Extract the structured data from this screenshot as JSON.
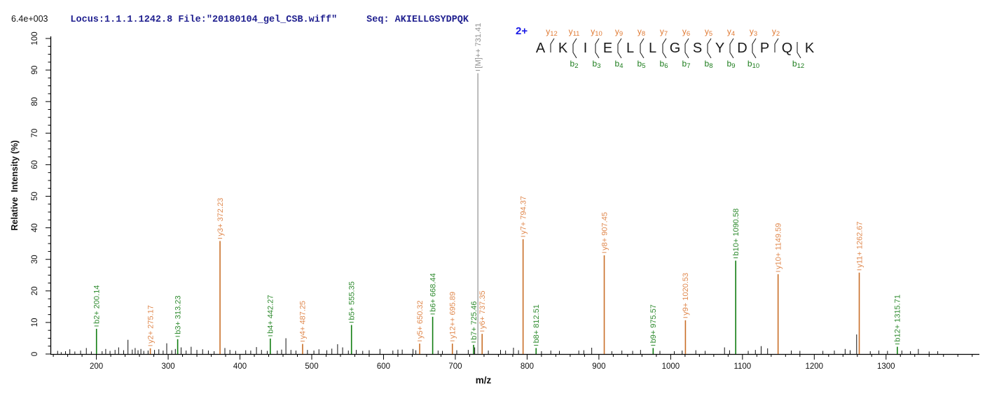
{
  "header": {
    "locus_file": "Locus:1.1.1.1242.8 File:\"20180104_gel_CSB.wiff\"",
    "seq": "Seq: AKIELLGSYDPQK"
  },
  "chart_data": {
    "type": "bar",
    "title": "MS/MS fragment ion spectrum",
    "xlabel": "m/z",
    "ylabel": "Relative  Intensity (%)",
    "scale_note": "6.4e+003",
    "xlim": [
      136,
      1430
    ],
    "ylim": [
      0,
      100
    ],
    "x_major_ticks": [
      200,
      300,
      400,
      500,
      600,
      700,
      800,
      900,
      1000,
      1100,
      1200,
      1300
    ],
    "x_minor_step": 20,
    "y_major_step": 10,
    "y_minor_step": 2.5,
    "grid": "off",
    "precursor": {
      "label": "[M]++ 731.41",
      "mz": 731.41,
      "pct": 89
    },
    "labeled_peaks": [
      {
        "label": "b2+ 200.14",
        "mz": 200.14,
        "pct": 8.0,
        "series": "b"
      },
      {
        "label": "y2+ 275.17",
        "mz": 275.17,
        "pct": 1.8,
        "series": "y"
      },
      {
        "label": "b3+ 313.23",
        "mz": 313.23,
        "pct": 4.7,
        "series": "b"
      },
      {
        "label": "y3+ 372.23",
        "mz": 372.23,
        "pct": 35.8,
        "series": "y"
      },
      {
        "label": "b4+ 442.27",
        "mz": 442.27,
        "pct": 4.9,
        "series": "b"
      },
      {
        "label": "y4+ 487.25",
        "mz": 487.25,
        "pct": 3.2,
        "series": "y"
      },
      {
        "label": "b5+ 555.35",
        "mz": 555.35,
        "pct": 9.2,
        "series": "b"
      },
      {
        "label": "y5+ 650.32",
        "mz": 650.32,
        "pct": 3.3,
        "series": "y"
      },
      {
        "label": "b6+ 668.44",
        "mz": 668.44,
        "pct": 11.8,
        "series": "b"
      },
      {
        "label": "y12++ 695.89",
        "mz": 695.89,
        "pct": 3.3,
        "series": "y"
      },
      {
        "label": "b7+ 725.46",
        "mz": 725.46,
        "pct": 2.9,
        "series": "b"
      },
      {
        "label": "y6+ 737.35",
        "mz": 737.35,
        "pct": 6.4,
        "series": "y"
      },
      {
        "label": "y7+ 794.37",
        "mz": 794.37,
        "pct": 36.4,
        "series": "y"
      },
      {
        "label": "b8+ 812.51",
        "mz": 812.51,
        "pct": 1.9,
        "series": "b"
      },
      {
        "label": "y8+ 907.45",
        "mz": 907.45,
        "pct": 31.3,
        "series": "y"
      },
      {
        "label": "b9+ 975.57",
        "mz": 975.57,
        "pct": 1.9,
        "series": "b"
      },
      {
        "label": "y9+ 1020.53",
        "mz": 1020.53,
        "pct": 10.7,
        "series": "y"
      },
      {
        "label": "b10+ 1090.58",
        "mz": 1090.58,
        "pct": 29.6,
        "series": "b"
      },
      {
        "label": "y10+ 1149.59",
        "mz": 1149.59,
        "pct": 25.3,
        "series": "y"
      },
      {
        "label": "y11+ 1262.67",
        "mz": 1262.67,
        "pct": 25.8,
        "series": "y"
      },
      {
        "label": "b12+ 1315.71",
        "mz": 1315.71,
        "pct": 2.3,
        "series": "b"
      }
    ],
    "noise_peaks": [
      [
        146,
        1.0
      ],
      [
        151,
        0.6
      ],
      [
        157,
        0.9
      ],
      [
        163,
        1.5
      ],
      [
        170,
        0.8
      ],
      [
        178,
        1.1
      ],
      [
        186,
        1.9
      ],
      [
        193,
        0.8
      ],
      [
        208,
        0.9
      ],
      [
        213,
        1.6
      ],
      [
        219,
        1.0
      ],
      [
        226,
        1.3
      ],
      [
        231,
        2.1
      ],
      [
        238,
        1.2
      ],
      [
        244,
        4.5
      ],
      [
        250,
        1.4
      ],
      [
        254,
        1.9
      ],
      [
        258,
        1.2
      ],
      [
        262,
        1.6
      ],
      [
        266,
        1.0
      ],
      [
        272,
        1.1
      ],
      [
        281,
        1.3
      ],
      [
        287,
        1.5
      ],
      [
        293,
        1.1
      ],
      [
        298,
        3.4
      ],
      [
        305,
        1.2
      ],
      [
        310,
        1.6
      ],
      [
        318,
        2.1
      ],
      [
        325,
        1.1
      ],
      [
        332,
        2.3
      ],
      [
        340,
        1.3
      ],
      [
        348,
        1.5
      ],
      [
        356,
        1.1
      ],
      [
        364,
        0.9
      ],
      [
        379,
        1.9
      ],
      [
        386,
        1.3
      ],
      [
        394,
        1.0
      ],
      [
        408,
        1.2
      ],
      [
        415,
        1.1
      ],
      [
        423,
        2.2
      ],
      [
        430,
        1.3
      ],
      [
        438,
        1.0
      ],
      [
        452,
        1.1
      ],
      [
        458,
        1.4
      ],
      [
        464,
        5.0
      ],
      [
        471,
        1.3
      ],
      [
        478,
        1.1
      ],
      [
        494,
        1.3
      ],
      [
        503,
        1.1
      ],
      [
        510,
        1.5
      ],
      [
        521,
        1.2
      ],
      [
        528,
        1.7
      ],
      [
        536,
        3.1
      ],
      [
        543,
        2.1
      ],
      [
        551,
        1.1
      ],
      [
        562,
        1.3
      ],
      [
        571,
        1.0
      ],
      [
        580,
        1.2
      ],
      [
        595,
        1.6
      ],
      [
        613,
        1.1
      ],
      [
        620,
        1.4
      ],
      [
        626,
        1.4
      ],
      [
        641,
        1.6
      ],
      [
        645,
        1.2
      ],
      [
        676,
        1.1
      ],
      [
        682,
        1.0
      ],
      [
        702,
        1.2
      ],
      [
        718,
        1.3
      ],
      [
        727,
        2.1
      ],
      [
        746,
        1.1
      ],
      [
        763,
        1.3
      ],
      [
        770,
        1.1
      ],
      [
        781,
        2.0
      ],
      [
        788,
        1.2
      ],
      [
        820,
        0.9
      ],
      [
        833,
        1.1
      ],
      [
        845,
        1.0
      ],
      [
        872,
        1.1
      ],
      [
        879,
        1.2
      ],
      [
        890,
        2.0
      ],
      [
        918,
        0.9
      ],
      [
        932,
        1.1
      ],
      [
        947,
        1.0
      ],
      [
        958,
        1.3
      ],
      [
        985,
        1.0
      ],
      [
        1005,
        0.9
      ],
      [
        1016,
        1.1
      ],
      [
        1035,
        1.2
      ],
      [
        1048,
        1.0
      ],
      [
        1075,
        2.1
      ],
      [
        1082,
        1.2
      ],
      [
        1108,
        1.0
      ],
      [
        1118,
        1.3
      ],
      [
        1126,
        2.5
      ],
      [
        1135,
        1.8
      ],
      [
        1168,
        1.1
      ],
      [
        1180,
        1.0
      ],
      [
        1212,
        1.0
      ],
      [
        1228,
        1.1
      ],
      [
        1243,
        1.6
      ],
      [
        1250,
        1.2
      ],
      [
        1259,
        6.2
      ],
      [
        1278,
        0.9
      ],
      [
        1290,
        1.1
      ],
      [
        1302,
        1.0
      ],
      [
        1322,
        1.1
      ],
      [
        1334,
        0.9
      ],
      [
        1345,
        1.6
      ],
      [
        1360,
        0.8
      ],
      [
        1372,
        0.9
      ]
    ]
  },
  "sequence": {
    "charge": "2+",
    "residues": [
      "A",
      "K",
      "I",
      "E",
      "L",
      "L",
      "G",
      "S",
      "Y",
      "D",
      "P",
      "Q",
      "K"
    ],
    "separators": [
      {
        "y": "y12",
        "b": null
      },
      {
        "y": "y11",
        "b": "b2"
      },
      {
        "y": "y10",
        "b": "b3"
      },
      {
        "y": "y9",
        "b": "b4"
      },
      {
        "y": "y8",
        "b": "b5"
      },
      {
        "y": "y7",
        "b": "b6"
      },
      {
        "y": "y6",
        "b": "b7"
      },
      {
        "y": "y5",
        "b": "b8"
      },
      {
        "y": "y4",
        "b": "b9"
      },
      {
        "y": "y3",
        "b": "b10"
      },
      {
        "y": "y2",
        "b": null
      },
      {
        "y": null,
        "b": "b12"
      }
    ]
  },
  "colors": {
    "b_line": "#117d11",
    "b_label": "#2f8b2f",
    "y_line": "#c96f28",
    "y_label": "#e08a50",
    "noise": "#101010",
    "precursor": "#8f8f8f",
    "axis": "#000000",
    "header_text": "#1f1f8f",
    "charge": "#1919e6"
  }
}
